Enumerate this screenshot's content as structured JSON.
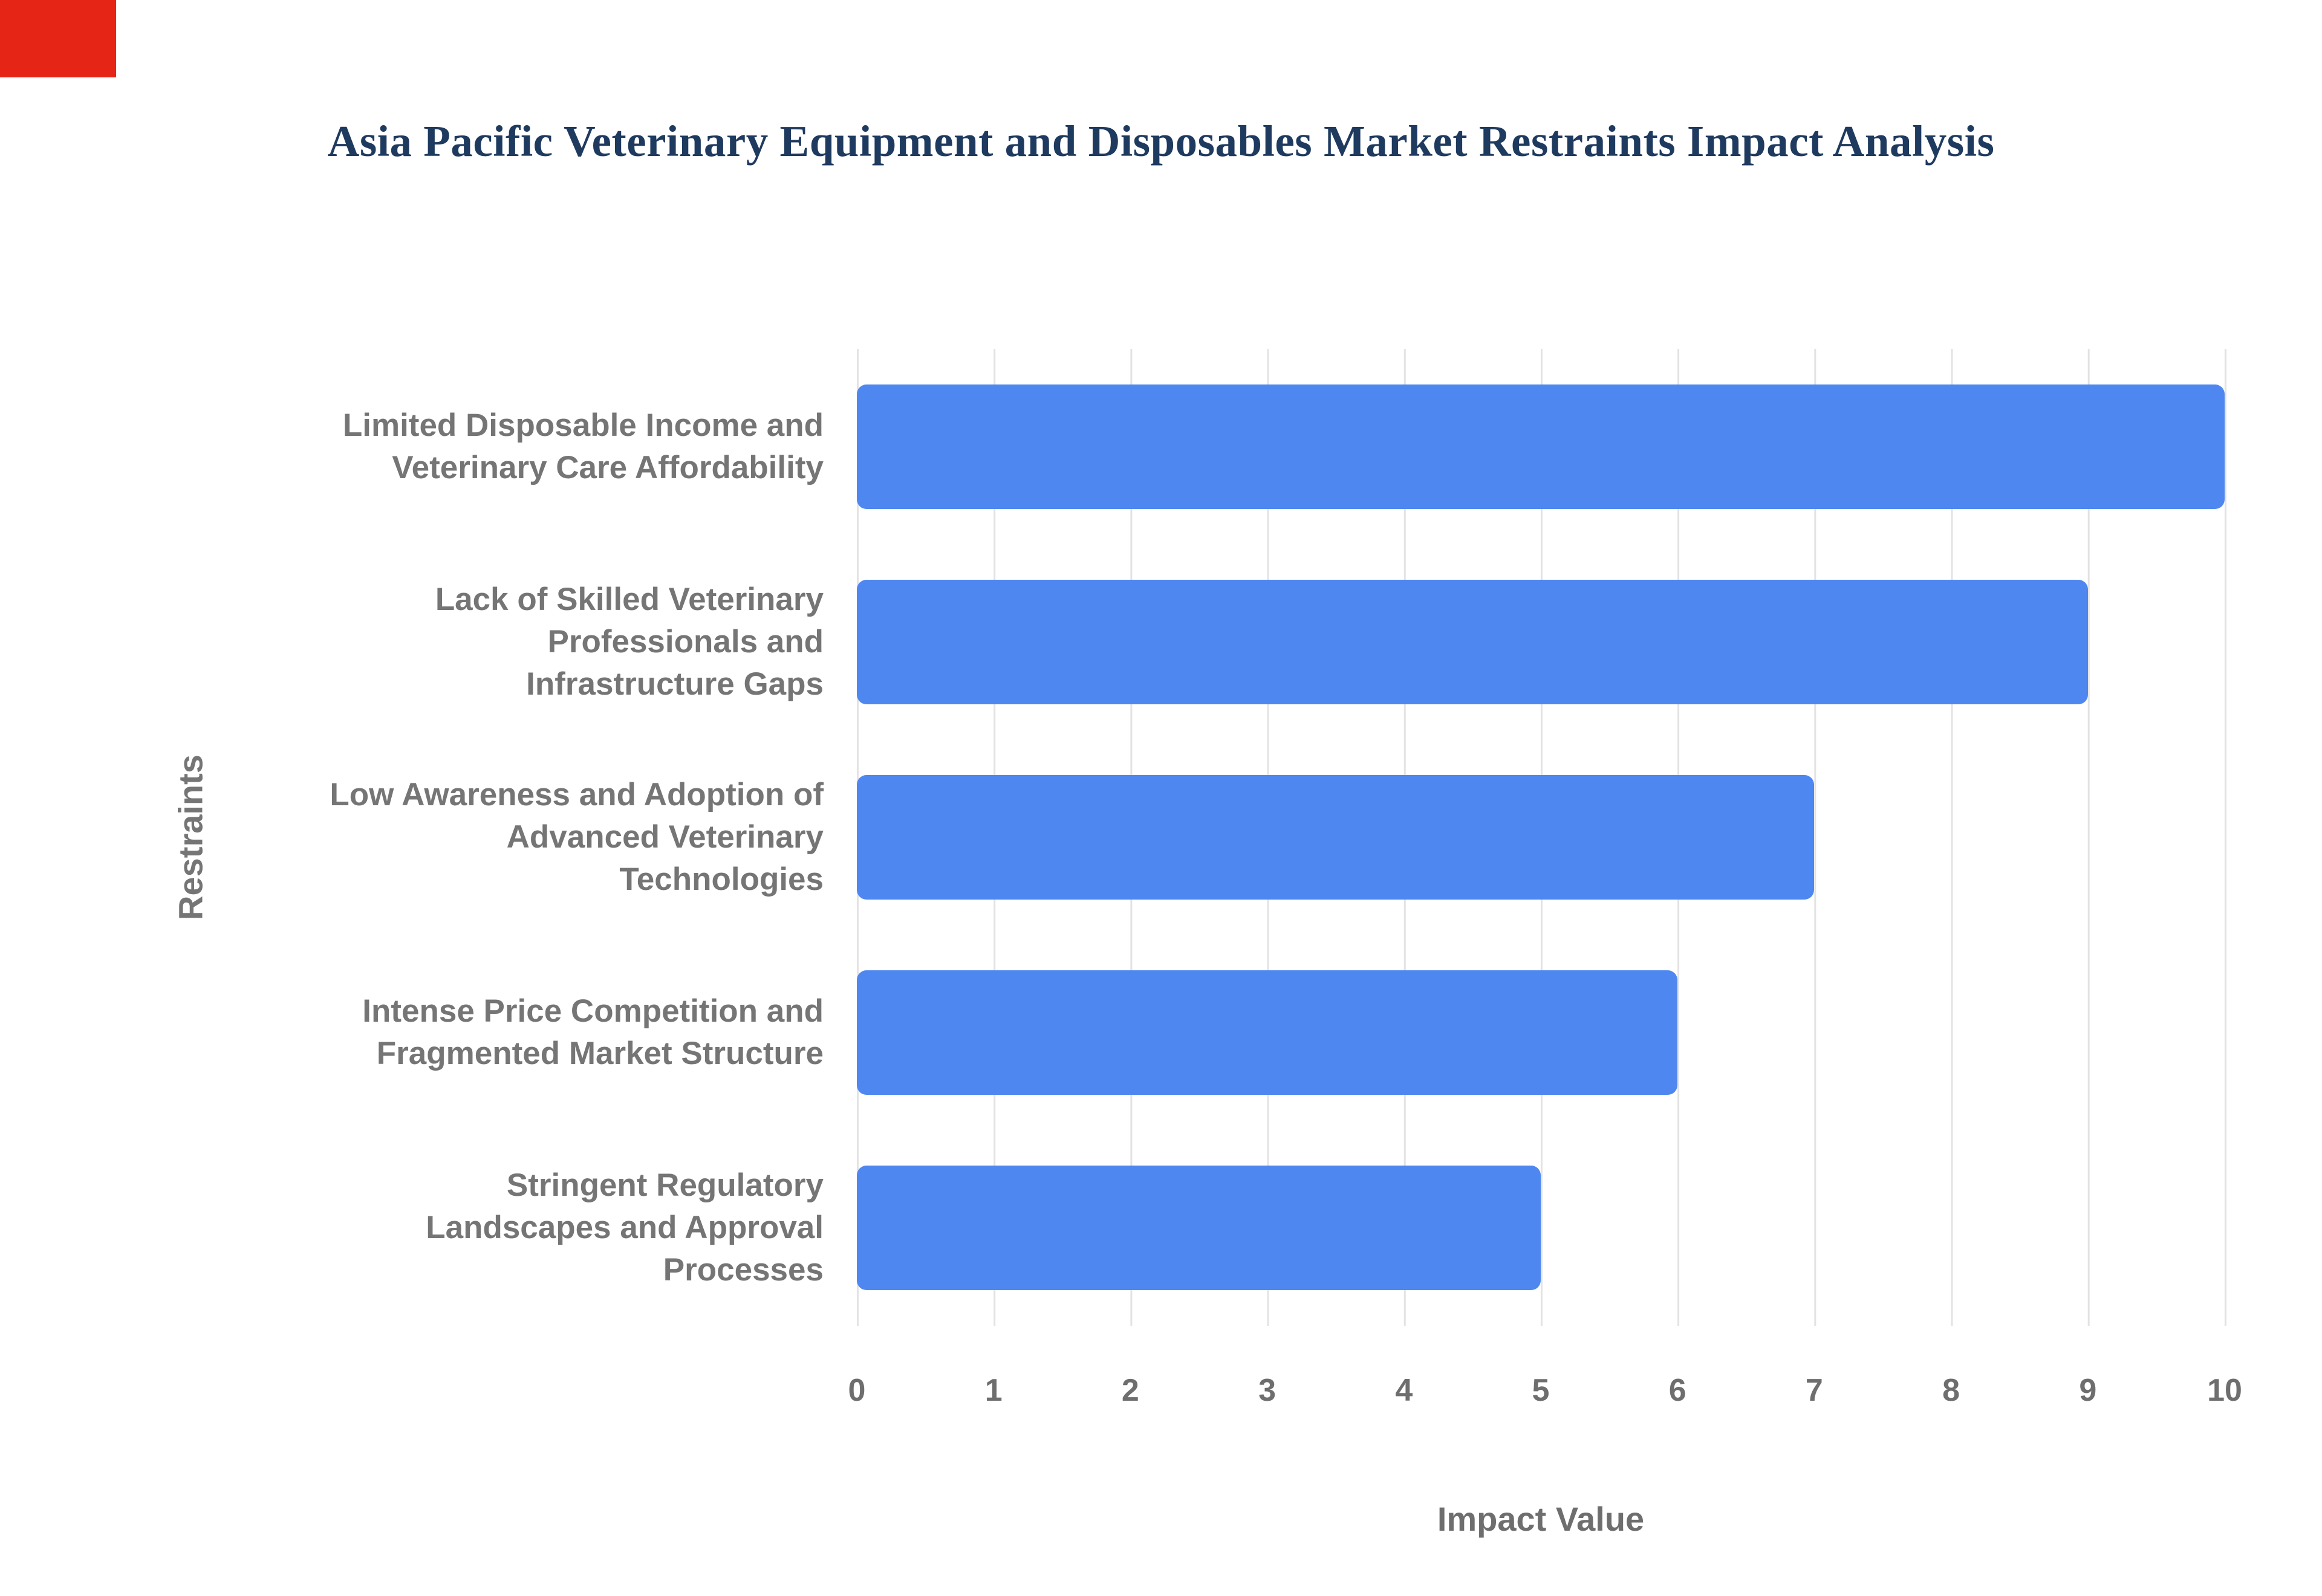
{
  "colors": {
    "corner": "#e52617",
    "title": "#1e3a5f",
    "label": "#757575",
    "tick": "#6e6e6e",
    "grid": "#e3e3e3",
    "bar": "#4f87f1"
  },
  "chart_data": {
    "type": "bar",
    "orientation": "horizontal",
    "title": "Asia Pacific Veterinary Equipment and Disposables Market Restraints Impact Analysis",
    "xlabel": "Impact Value",
    "ylabel": "Restraints",
    "categories": [
      "Limited Disposable Income and Veterinary Care Affordability",
      "Lack of Skilled Veterinary Professionals and Infrastructure Gaps",
      "Low Awareness and Adoption of Advanced Veterinary Technologies",
      "Intense Price Competition and Fragmented Market Structure",
      "Stringent Regulatory Landscapes and Approval Processes"
    ],
    "category_lines": [
      [
        "Limited Disposable Income and",
        "Veterinary Care Affordability"
      ],
      [
        "Lack of Skilled Veterinary",
        "Professionals and",
        "Infrastructure Gaps"
      ],
      [
        "Low Awareness and Adoption of",
        "Advanced Veterinary",
        "Technologies"
      ],
      [
        "Intense Price Competition and",
        "Fragmented Market Structure"
      ],
      [
        "Stringent Regulatory",
        "Landscapes and Approval",
        "Processes"
      ]
    ],
    "values": [
      10,
      9,
      7,
      6,
      5
    ],
    "xlim": [
      0,
      10
    ],
    "xticks": [
      0,
      1,
      2,
      3,
      4,
      5,
      6,
      7,
      8,
      9,
      10
    ],
    "grid": true,
    "legend": "none"
  }
}
